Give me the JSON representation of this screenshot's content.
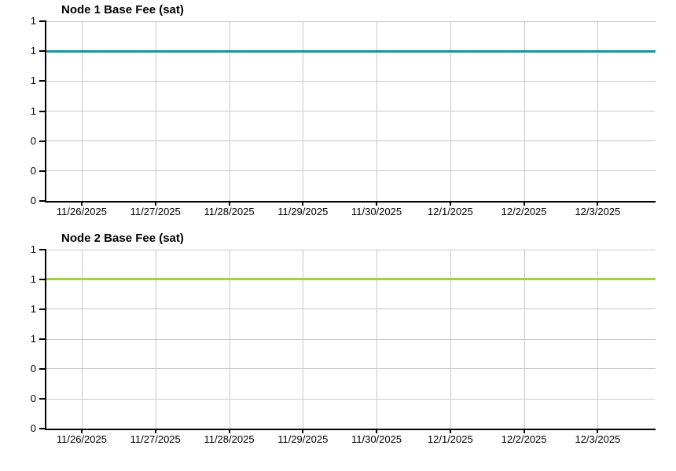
{
  "page": {
    "background": "#ffffff",
    "text_color": "#000000",
    "grid_color": "#c9c9c9",
    "axis_color": "#000000"
  },
  "chart_data": [
    {
      "type": "line",
      "title": "Node 1 Base Fee (sat)",
      "xlabel": "",
      "ylabel": "",
      "x": [
        "11/26/2025",
        "11/27/2025",
        "11/28/2025",
        "11/29/2025",
        "11/30/2025",
        "12/1/2025",
        "12/2/2025",
        "12/3/2025"
      ],
      "series": [
        {
          "name": "Node 1 Base Fee (sat)",
          "values": [
            1,
            1,
            1,
            1,
            1,
            1,
            1,
            1
          ]
        }
      ],
      "ylim": [
        0,
        1.2
      ],
      "y_ticks": [
        1.2,
        1.0,
        0.8,
        0.6,
        0.4,
        0.2,
        0
      ],
      "y_tick_labels": [
        "1",
        "1",
        "1",
        "1",
        "0",
        "0",
        "0"
      ],
      "x_tick_pct": [
        5.8,
        17.9,
        30.0,
        42.1,
        54.2,
        66.3,
        78.4,
        90.5
      ],
      "grid": true,
      "legend": "none",
      "line_color": "#18939B"
    },
    {
      "type": "line",
      "title": "Node 2 Base Fee (sat)",
      "xlabel": "",
      "ylabel": "",
      "x": [
        "11/26/2025",
        "11/27/2025",
        "11/28/2025",
        "11/29/2025",
        "11/30/2025",
        "12/1/2025",
        "12/2/2025",
        "12/3/2025"
      ],
      "series": [
        {
          "name": "Node 2 Base Fee (sat)",
          "values": [
            1,
            1,
            1,
            1,
            1,
            1,
            1,
            1
          ]
        }
      ],
      "ylim": [
        0,
        1.2
      ],
      "y_ticks": [
        1.2,
        1.0,
        0.8,
        0.6,
        0.4,
        0.2,
        0
      ],
      "y_tick_labels": [
        "1",
        "1",
        "1",
        "1",
        "0",
        "0",
        "0"
      ],
      "x_tick_pct": [
        5.8,
        17.9,
        30.0,
        42.1,
        54.2,
        66.3,
        78.4,
        90.5
      ],
      "grid": true,
      "legend": "none",
      "line_color": "#9FD140"
    }
  ]
}
